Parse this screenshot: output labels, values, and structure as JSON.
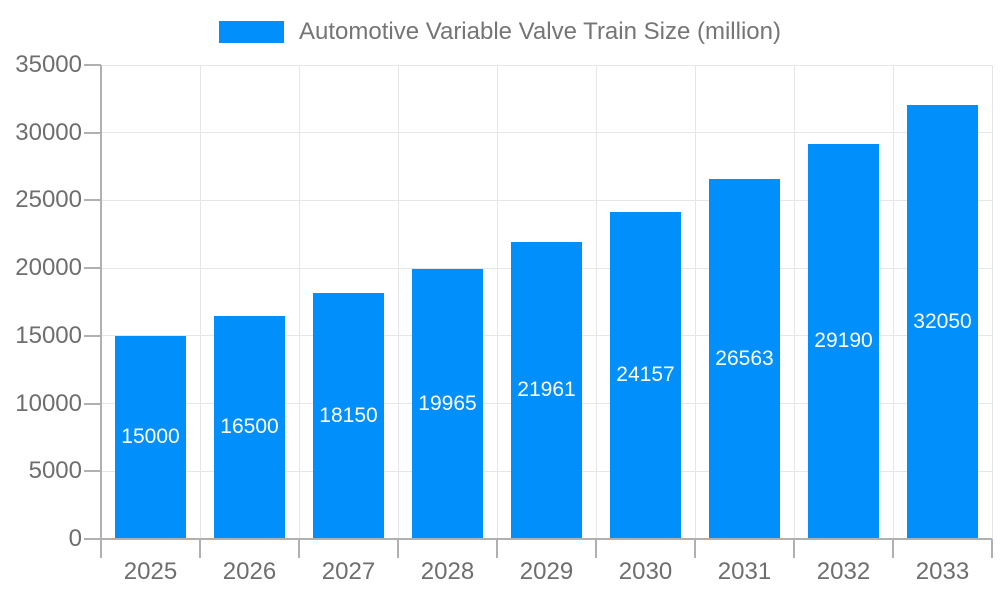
{
  "legend": {
    "label": "Automotive Variable Valve Train Size (million)",
    "swatch_color": "#008FFB"
  },
  "chart_data": {
    "type": "bar",
    "title": "Automotive Variable Valve Train Size (million)",
    "series_name": "Automotive Variable Valve Train Size (million)",
    "categories": [
      "2025",
      "2026",
      "2027",
      "2028",
      "2029",
      "2030",
      "2031",
      "2032",
      "2033"
    ],
    "values": [
      15000,
      16500,
      18150,
      19965,
      21961,
      24157,
      26563,
      29190,
      32050
    ],
    "xlabel": "",
    "ylabel": "",
    "ylim": [
      0,
      35000
    ],
    "ytick_step": 5000,
    "yticks": [
      0,
      5000,
      10000,
      15000,
      20000,
      25000,
      30000,
      35000
    ],
    "grid": true,
    "legend_position": "top",
    "bar_color": "#008FFB",
    "value_label_color": "#ffffff",
    "axis_text_color": "#6e6e6e",
    "grid_color": "#e6e6e6",
    "axis_line_color": "#b0b0b0"
  }
}
